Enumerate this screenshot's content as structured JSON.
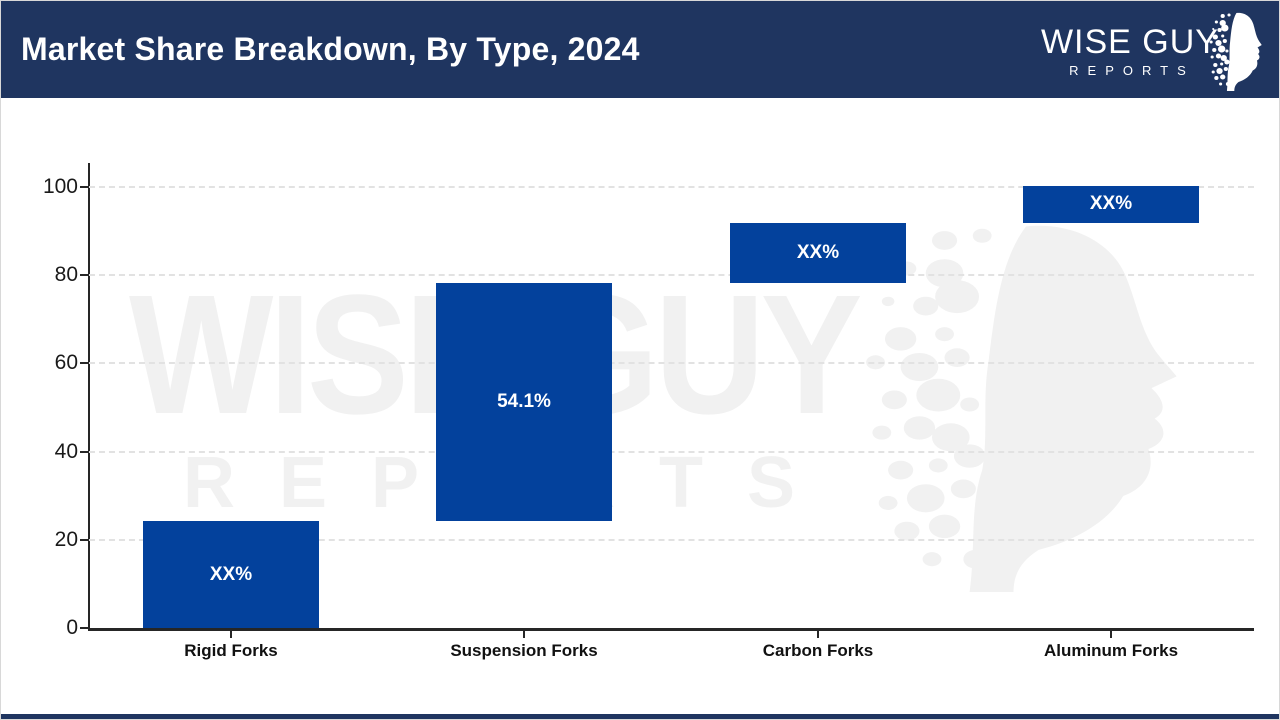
{
  "header": {
    "title": "Market Share Breakdown, By Type, 2024",
    "logo": {
      "line1": "WISE GUY",
      "line2": "REPORTS"
    }
  },
  "watermark": {
    "line1": "WISE GUY",
    "line2": "REPORTS"
  },
  "colors": {
    "header_bg": "#1f3560",
    "footer_bg": "#1f3560",
    "bar": "#03419c",
    "grid": "#e2e2e2",
    "axis": "#262626",
    "bar_label_text": "#ffffff",
    "watermark": "#f1f1f1"
  },
  "chart_data": {
    "type": "bar",
    "subtype": "waterfall",
    "title": "Market Share Breakdown, By Type, 2024",
    "categories": [
      "Rigid Forks",
      "Suspension Forks",
      "Carbon Forks",
      "Aluminum Forks"
    ],
    "segments": [
      {
        "category": "Rigid Forks",
        "start": 0,
        "end": 24.2,
        "label": "XX%"
      },
      {
        "category": "Suspension Forks",
        "start": 24.2,
        "end": 78.3,
        "label": "54.1%"
      },
      {
        "category": "Carbon Forks",
        "start": 78.3,
        "end": 91.9,
        "label": "XX%"
      },
      {
        "category": "Aluminum Forks",
        "start": 91.9,
        "end": 100.3,
        "label": "XX%"
      }
    ],
    "y_ticks": [
      0,
      20,
      40,
      60,
      80,
      100
    ],
    "ylim": [
      0,
      105
    ],
    "xlabel": "",
    "ylabel": "",
    "grid": "horizontal-dashed",
    "legend": "none"
  }
}
